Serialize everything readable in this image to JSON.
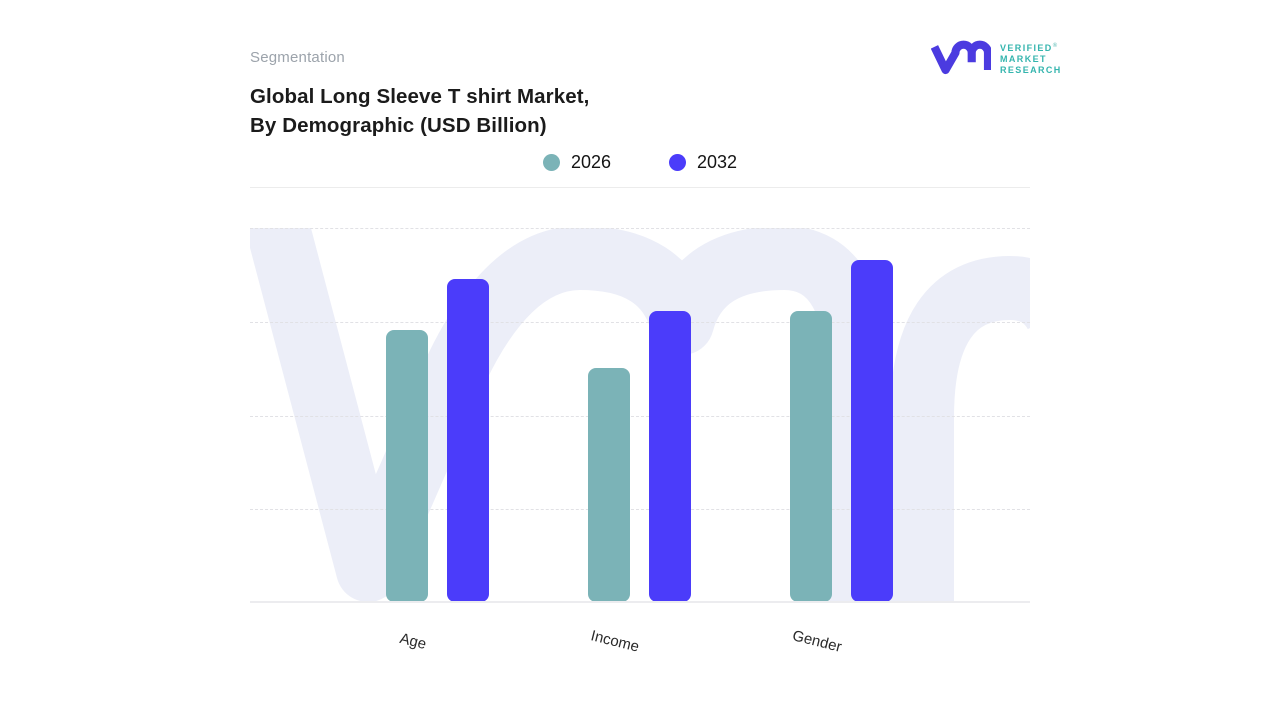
{
  "header": {
    "kicker": "Segmentation",
    "title_line1": "Global Long Sleeve T shirt Market,",
    "title_line2": "By Demographic (USD Billion)"
  },
  "logo": {
    "word1": "VERIFIED",
    "registered": "®",
    "word2": "MARKET",
    "word3": "RESEARCH",
    "glyph_color": "#4B3BE0",
    "text_color": "#35B5AE"
  },
  "colors": {
    "series_2026": "#7BB3B7",
    "series_2032": "#4B3CFA",
    "watermark": "#ECEEF8",
    "kicker_text": "#9CA3AB",
    "title_text": "#1B1B1B",
    "gridline": "#E1E1E5",
    "baseline": "#ECECEF",
    "axis_label_text": "#2A2A2A"
  },
  "chart_data": {
    "type": "bar",
    "title": "Global Long Sleeve T shirt Market, By Demographic (USD Billion)",
    "categories": [
      "Age",
      "Income",
      "Gender"
    ],
    "series": [
      {
        "name": "2026",
        "color": "#7BB3B7",
        "values": [
          2.9,
          2.5,
          3.1
        ]
      },
      {
        "name": "2032",
        "color": "#4B3CFA",
        "values": [
          3.45,
          3.1,
          3.65
        ]
      }
    ],
    "xlabel": "",
    "ylabel": "",
    "ylim": [
      0,
      4
    ],
    "y_tick_labels_visible": false,
    "gridlines": "horizontal-dashed",
    "legend_position": "top-center",
    "x_tick_label_rotation_deg": 14
  }
}
